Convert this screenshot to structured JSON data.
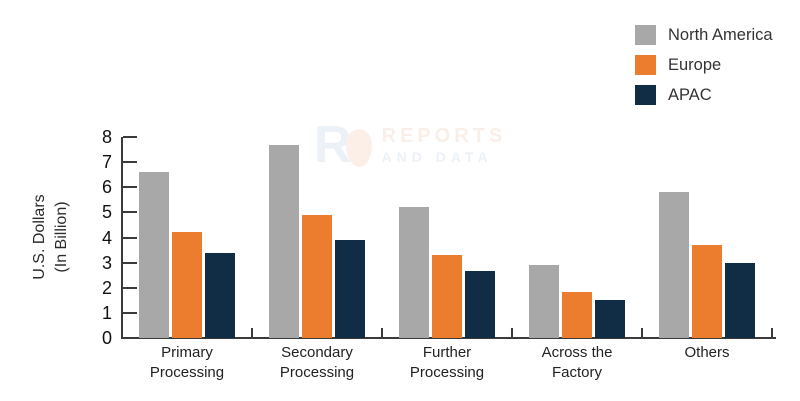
{
  "chart_data": {
    "type": "bar",
    "categories": [
      "Primary Processing",
      "Secondary Processing",
      "Further Processing",
      "Across the Factory",
      "Others"
    ],
    "series": [
      {
        "name": "North America",
        "color": "#a8a8a8",
        "values": [
          6.6,
          7.7,
          5.2,
          2.9,
          5.8
        ]
      },
      {
        "name": "Europe",
        "color": "#ed7d2e",
        "values": [
          4.2,
          4.9,
          3.3,
          1.85,
          3.7
        ]
      },
      {
        "name": "APAC",
        "color": "#112c45",
        "values": [
          3.4,
          3.9,
          2.65,
          1.5,
          3.0
        ]
      }
    ],
    "title": "",
    "xlabel": "",
    "ylabel_line1": "U.S. Dollars",
    "ylabel_line2": "(In Billion)",
    "ylim": [
      0,
      8
    ],
    "yticks": [
      0,
      1,
      2,
      3,
      4,
      5,
      6,
      7,
      8
    ],
    "grid": false,
    "legend_position": "top-right"
  },
  "watermark": {
    "letter": "R",
    "line1": "REPORTS",
    "line2": "AND DATA"
  },
  "colors": {
    "axis": "#3b3b3b",
    "north_america": "#a8a8a8",
    "europe": "#ed7d2e",
    "apac": "#112c45"
  }
}
